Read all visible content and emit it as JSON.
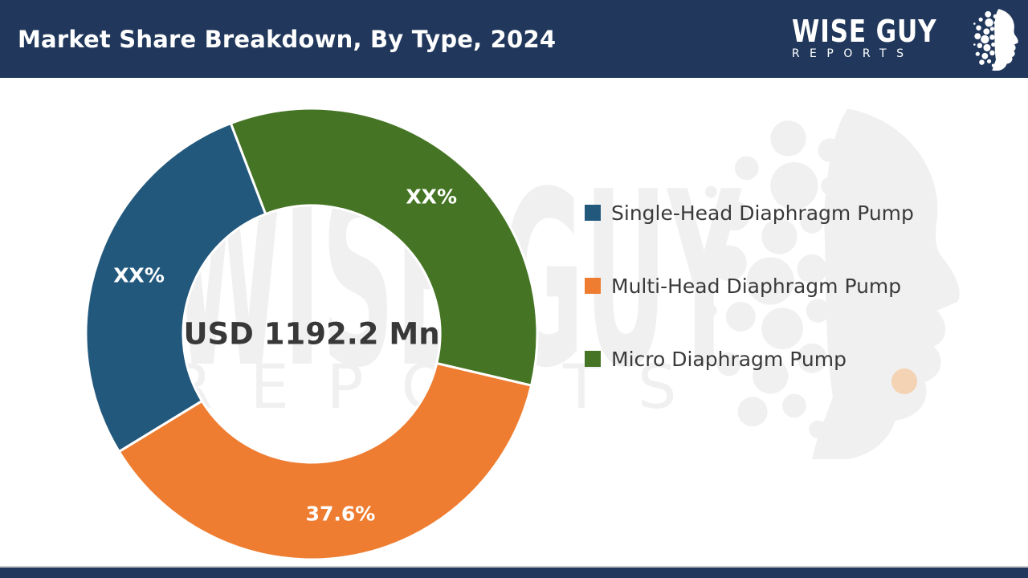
{
  "header": {
    "title": "Market Share Breakdown, By Type, 2024",
    "logo": {
      "line1": "WISE GUY",
      "line2": "REPORTS"
    }
  },
  "watermark": {
    "line1": "WISE GUY",
    "line2": "REPORTS"
  },
  "chart_data": {
    "type": "donut",
    "title": "Market Share Breakdown, By Type, 2024",
    "center_label": "USD 1192.2 Mn",
    "start_angle_deg": -21,
    "legend_position": "right",
    "segments": [
      {
        "name": "Micro Diaphragm Pump",
        "value_pct": 34.5,
        "label": "XX%",
        "color": "#457524"
      },
      {
        "name": "Multi-Head Diaphragm Pump",
        "value_pct": 37.6,
        "label": "37.6%",
        "color": "#EE7D31"
      },
      {
        "name": "Single-Head Diaphragm Pump",
        "value_pct": 27.9,
        "label": "XX%",
        "color": "#23587D"
      }
    ],
    "legend": [
      {
        "label": "Single-Head Diaphragm Pump",
        "color": "#23587D"
      },
      {
        "label": "Multi-Head Diaphragm Pump",
        "color": "#EE7D31"
      },
      {
        "label": "Micro Diaphragm Pump",
        "color": "#457524"
      }
    ]
  },
  "colors": {
    "header_bg": "#21385C",
    "footer_bar": "#21385C",
    "watermark": "#F0F0F0",
    "bottom_rule": "#C9C9C9",
    "center_text": "#383838",
    "legend_text": "#3A3A3A"
  }
}
